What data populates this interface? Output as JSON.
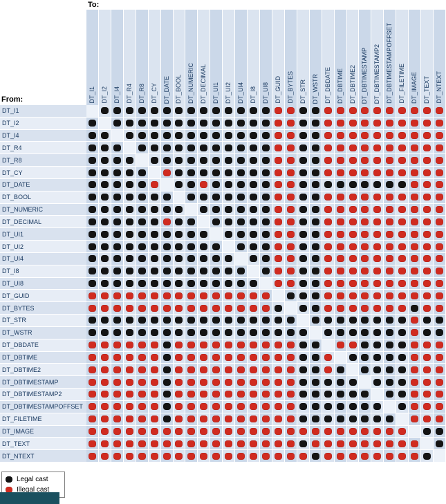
{
  "legend": {
    "items": [
      {
        "label": "Legal cast",
        "color": "#141414"
      },
      {
        "label": "Illegal cast",
        "color": "#d02b20"
      }
    ]
  },
  "colors": {
    "legal_dot": "#141414",
    "illegal_dot": "#d02b20",
    "col_stripe_dark": "#cbd8e9",
    "col_stripe_light": "#dbe4f0",
    "diagonal_cell": "#edf2f9",
    "row_label_dark": "#d9e2ef",
    "row_label_light": "#e7edf6",
    "label_text": "#17375e",
    "footer_bar": "#1a505f"
  },
  "chart_data": {
    "type": "heatmap",
    "x_axis_label": "To:",
    "y_axis_label": "From:",
    "categories": [
      "DT_I1",
      "DT_I2",
      "DT_I4",
      "DT_R4",
      "DT_R8",
      "DT_CY",
      "DT_DATE",
      "DT_BOOL",
      "DT_NUMERIC",
      "DT_DECIMAL",
      "DT_UI1",
      "DT_UI2",
      "DT_UI4",
      "DT_I8",
      "DT_UI8",
      "DT_GUID",
      "DT_BYTES",
      "DT_STR",
      "DT_WSTR",
      "DT_DBDATE",
      "DT_DBTIME",
      "DT_DBTIME2",
      "DT_DBTIMESTAMP",
      "DT_DBTIMESTAMP2",
      "DT_DBTIMESTAMPOFFSET",
      "DT_FILETIME",
      "DT_IMAGE",
      "DT_TEXT",
      "DT_NTEXT"
    ],
    "cell_encoding": {
      "L": "legal cast (black dot)",
      "I": "illegal cast (red dot)",
      "S": "same type (no dot)"
    },
    "rows": [
      "SLLLLLLLLLLLLLLIILLIIIIIIIIII",
      "LSLLLLLLLLLLLLLIILLIIIIIIIIII",
      "LLSLLLLLLLLLLLLIILLIIIIIIIIII",
      "LLLSLLLLLLLLLLLIILLIIIIIIIIII",
      "LLLLSLLLLLLLLLLIILLIIIIIIIIII",
      "LLLLLSILLLLLLLLIILLIIIIIIIIII",
      "LLLLLISLLILLLLLIILLLLLLLLLIII",
      "LLLLLLLSLLLLLLLIILLIIIIIIIIII",
      "LLLLLLLLSLLLLLLIILLIIIIIIIIII",
      "LLLLLLILLSLLLLLIILLIIIIIIIIII",
      "LLLLLLLLLLSLLLLIILLIIIIIIIIII",
      "LLLLLLLLLLLSLLLIILLIIIIIIIIII",
      "LLLLLLLLLLLLSLLIILLIIIIIIIIII",
      "LLLLLLLLLLLLLSLIILLIIIIIIIIII",
      "LLLLLLLLLLLLLLSIILLIIIIIIIIII",
      "IIIIIIIIIIIIIIISLLLIIIIIIIIII",
      "IIIIIIIIIIIIIIILSLLIIIIIIILII",
      "LLLLLLLLLLLLLLLLLSLLLLLLLLILL",
      "LLLLLLLLLLLLLLLLLLSLLLLLLLILL",
      "IIIIIILIIIIIIIIIILLSIILLLLIII",
      "IIIIIILIIIIIIIIIILLISLLLLLIII",
      "IIIIIILIIIIIIIIIILLILSLLLLIII",
      "IIIIIILIIIIIIIIIILLLLLSLLLIII",
      "IIIIIILIIIIIIIIIILLLLLLSLLIII",
      "IIIIIILIIIIIIIIIILLLLLLLSLIII",
      "IIIIIILIIIIIIIIIILLLLLLLLSIII",
      "IIIIIIIIIIIIIIIIIIIIIIIIIISLL",
      "IIIIIIIIIIIIIIIIILIIIIIIIIISL",
      "IIIIIIIIIIIIIIIIIILIIIIIIIILS"
    ],
    "legend_entries": [
      "Legal cast",
      "Illegal cast"
    ]
  }
}
